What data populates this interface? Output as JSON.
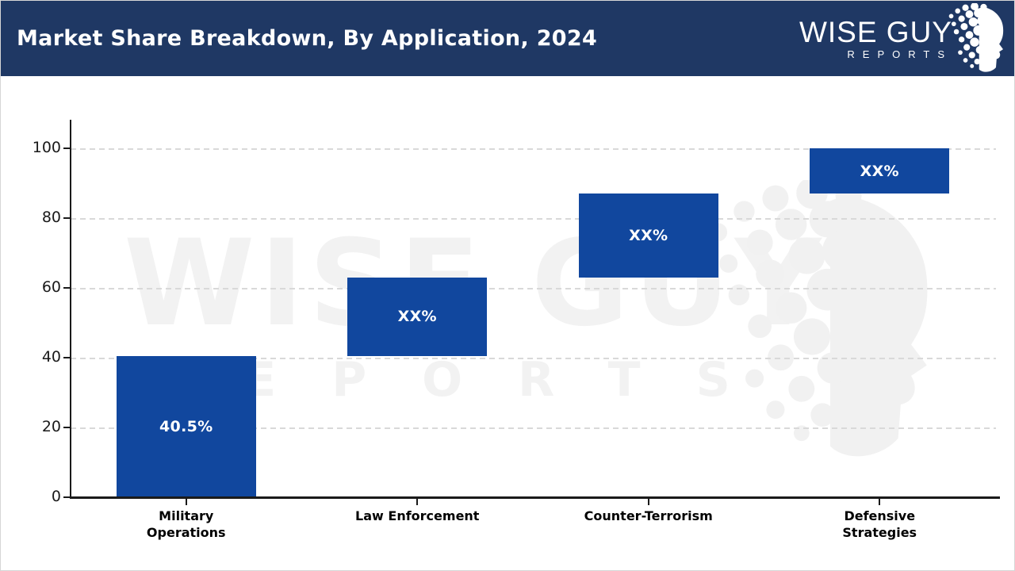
{
  "header": {
    "title": "Market Share Breakdown, By Application, 2024",
    "logo": {
      "line1": "WISE GUY",
      "line2": "REPORTS"
    }
  },
  "watermark": {
    "line1": "WISE GUY",
    "line2": "REPORTS"
  },
  "chart_data": {
    "type": "bar",
    "variant": "waterfall",
    "title": "Market Share Breakdown, By Application, 2024",
    "categories": [
      "Military\nOperations",
      "Law Enforcement",
      "Counter-Terrorism",
      "Defensive\nStrategies"
    ],
    "bars": [
      {
        "category": "Military Operations",
        "start": 0,
        "end": 40.5,
        "label": "40.5%"
      },
      {
        "category": "Law Enforcement",
        "start": 40.5,
        "end": 63,
        "label": "XX%"
      },
      {
        "category": "Counter-Terrorism",
        "start": 63,
        "end": 87,
        "label": "XX%"
      },
      {
        "category": "Defensive Strategies",
        "start": 87,
        "end": 100,
        "label": "XX%"
      }
    ],
    "xlabel": "",
    "ylabel": "",
    "ylim": [
      0,
      100
    ],
    "yticks": [
      0,
      20,
      40,
      60,
      80,
      100
    ],
    "grid": "horizontal-dashed",
    "legend": "none",
    "colors": {
      "bar": "#11479e",
      "header_bg": "#1f3864",
      "grid": "#d9d9d9",
      "axis": "#1a1a1a",
      "bar_label": "#ffffff",
      "title_text": "#ffffff",
      "watermark": "#f2f2f2"
    }
  }
}
